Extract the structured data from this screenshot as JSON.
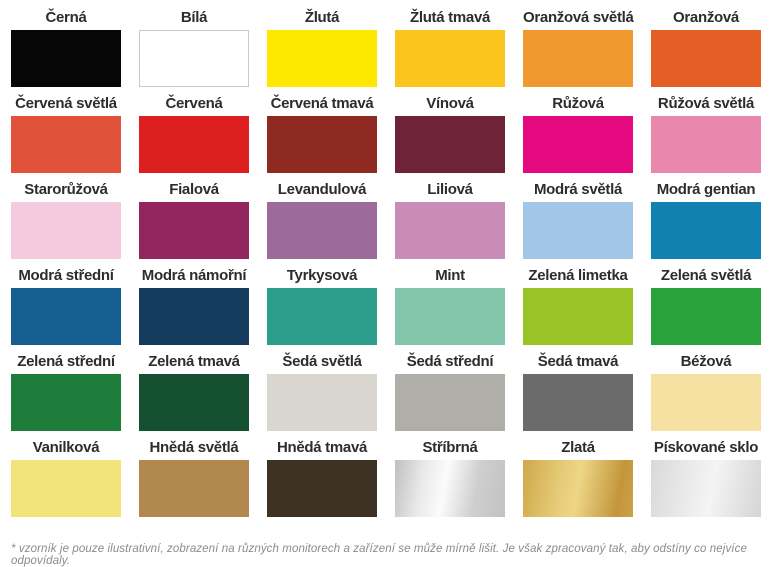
{
  "page": {
    "background": "#ffffff",
    "label_color": "#2d2d2d"
  },
  "footnote": "* vzorník je pouze ilustrativní, zobrazení na různých monitorech a zařízení se může mírně lišit. Je však zpracovaný tak, aby odstíny co nejvíce odpovídaly.",
  "swatches": [
    {
      "label": "Černá",
      "color": "#060606"
    },
    {
      "label": "Bílá",
      "color": "#ffffff",
      "border": "#c9c9c9"
    },
    {
      "label": "Žlutá",
      "color": "#ffe800"
    },
    {
      "label": "Žlutá tmavá",
      "color": "#f9c51e"
    },
    {
      "label": "Oranžová světlá",
      "color": "#f0992e"
    },
    {
      "label": "Oranžová",
      "color": "#e45f26"
    },
    {
      "label": "Červená světlá",
      "color": "#e0523a"
    },
    {
      "label": "Červená",
      "color": "#dd1e1e"
    },
    {
      "label": "Červená tmavá",
      "color": "#8e2a21"
    },
    {
      "label": "Vínová",
      "color": "#6f2339"
    },
    {
      "label": "Růžová",
      "color": "#e50a80"
    },
    {
      "label": "Růžová světlá",
      "color": "#e987ad"
    },
    {
      "label": "Starorůžová",
      "color": "#f4cade"
    },
    {
      "label": "Fialová",
      "color": "#93265f"
    },
    {
      "label": "Levandulová",
      "color": "#9d6b9b"
    },
    {
      "label": "Liliová",
      "color": "#c88cb6"
    },
    {
      "label": "Modrá světlá",
      "color": "#a1c6e8"
    },
    {
      "label": "Modrá gentian",
      "color": "#1181b1"
    },
    {
      "label": "Modrá střední",
      "color": "#155f93"
    },
    {
      "label": "Modrá námořní",
      "color": "#143a5e"
    },
    {
      "label": "Tyrkysová",
      "color": "#2b9f8c"
    },
    {
      "label": "Mint",
      "color": "#82c5aa"
    },
    {
      "label": "Zelená limetka",
      "color": "#9ac327"
    },
    {
      "label": "Zelená světlá",
      "color": "#2aa23c"
    },
    {
      "label": "Zelená střední",
      "color": "#1f7d3b"
    },
    {
      "label": "Zelená tmavá",
      "color": "#155130"
    },
    {
      "label": "Šedá světlá",
      "color": "#d8d6ce"
    },
    {
      "label": "Šedá střední",
      "color": "#b0aea9"
    },
    {
      "label": "Šedá tmavá",
      "color": "#6b6b6b"
    },
    {
      "label": "Béžová",
      "color": "#f6e1a2"
    },
    {
      "label": "Vanilková",
      "color": "#f3e37b"
    },
    {
      "label": "Hnědá světlá",
      "color": "#b1894f"
    },
    {
      "label": "Hnědá tmavá",
      "color": "#3d3124"
    },
    {
      "label": "Stříbrná",
      "gradient": {
        "angle": 100,
        "stops": [
          [
            "#bfbfbf",
            0
          ],
          [
            "#e9e9e9",
            25
          ],
          [
            "#fbfbfb",
            45
          ],
          [
            "#cfcfcf",
            72
          ],
          [
            "#c2c2c2",
            100
          ]
        ]
      }
    },
    {
      "label": "Zlatá",
      "gradient": {
        "angle": 100,
        "stops": [
          [
            "#cfa84a",
            0
          ],
          [
            "#e6cc78",
            35
          ],
          [
            "#edd685",
            50
          ],
          [
            "#c3963c",
            85
          ],
          [
            "#cda145",
            100
          ]
        ]
      }
    },
    {
      "label": "Pískované sklo",
      "gradient": {
        "angle": 100,
        "stops": [
          [
            "#d9d9d9",
            0
          ],
          [
            "#ededed",
            40
          ],
          [
            "#f4f4f4",
            55
          ],
          [
            "#d5d5d5",
            100
          ]
        ]
      }
    }
  ]
}
